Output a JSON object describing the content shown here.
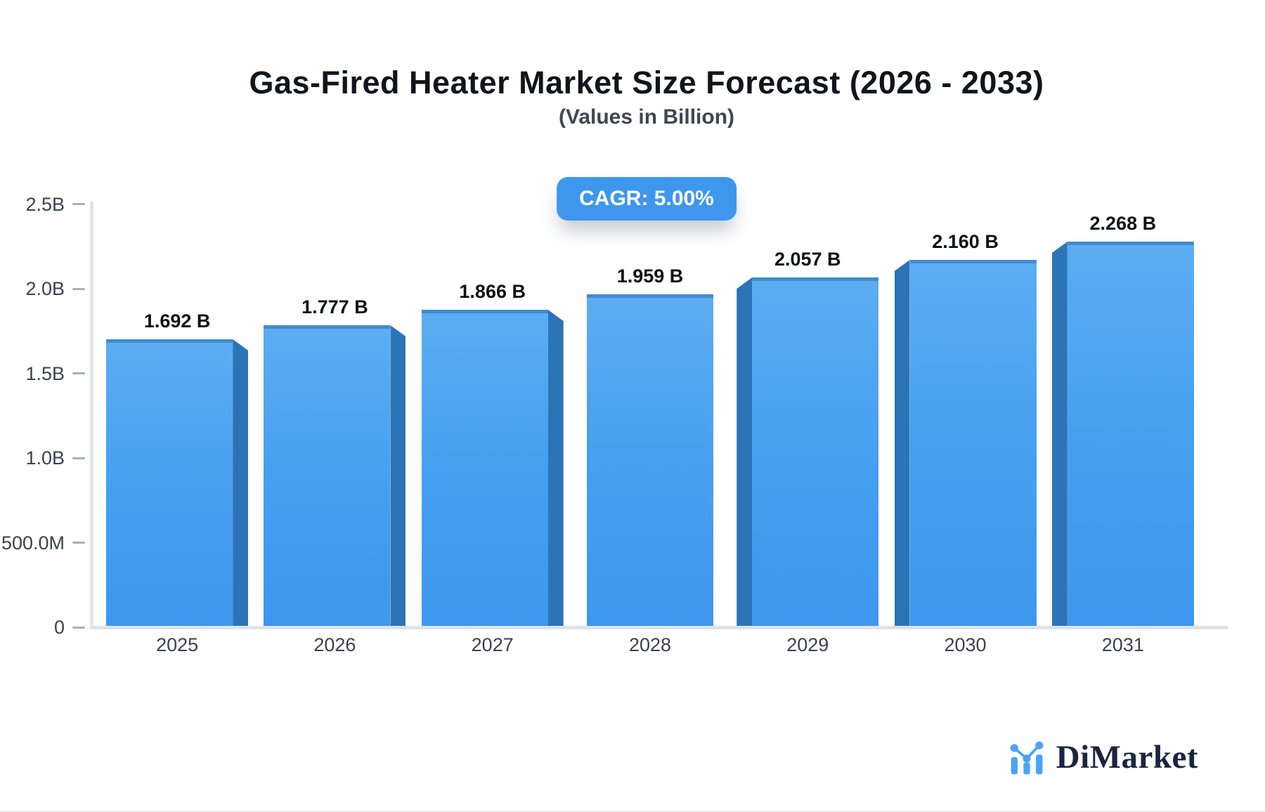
{
  "chart_data": {
    "type": "bar",
    "title": "Gas-Fired Heater Market Size Forecast (2026 - 2033)",
    "subtitle": "(Values in Billion)",
    "cagr_badge": "CAGR: 5.00%",
    "categories": [
      "2025",
      "2026",
      "2027",
      "2028",
      "2029",
      "2030",
      "2031"
    ],
    "values": [
      1.692,
      1.777,
      1.866,
      1.959,
      2.057,
      2.16,
      2.268
    ],
    "value_labels": [
      "1.692 B",
      "1.777 B",
      "1.866 B",
      "1.959 B",
      "2.057 B",
      "2.160 B",
      "2.268 B"
    ],
    "unit": "Billion",
    "xlabel": "",
    "ylabel": "",
    "ylim": [
      0,
      2.5
    ],
    "yticks": [
      {
        "label": "2.5B",
        "value": 2.5
      },
      {
        "label": "2.0B",
        "value": 2.0
      },
      {
        "label": "1.5B",
        "value": 1.5
      },
      {
        "label": "1.0B",
        "value": 1.0
      },
      {
        "label": "500.0M",
        "value": 0.5
      },
      {
        "label": "0",
        "value": 0
      }
    ],
    "grid": false,
    "legend": "none",
    "colors": {
      "bar_face_top": "#5cadf2",
      "bar_face_bottom": "#3e97ee",
      "bar_top_edge": "#3e8cd2",
      "bar_side_face": "#2b74b8",
      "badge_bg": "#3e97ec",
      "badge_text": "#ffffff",
      "axis_line": "#e3e5ea",
      "tick_text": "#39424f",
      "label_text": "#0d1117"
    }
  },
  "footer": {
    "brand": "DiMarket",
    "brand_color": "#1a2540",
    "brand_icon_color": "#4aa3f7"
  },
  "icons": {
    "logo_icon": "mini-bar-trend-chart-icon"
  }
}
